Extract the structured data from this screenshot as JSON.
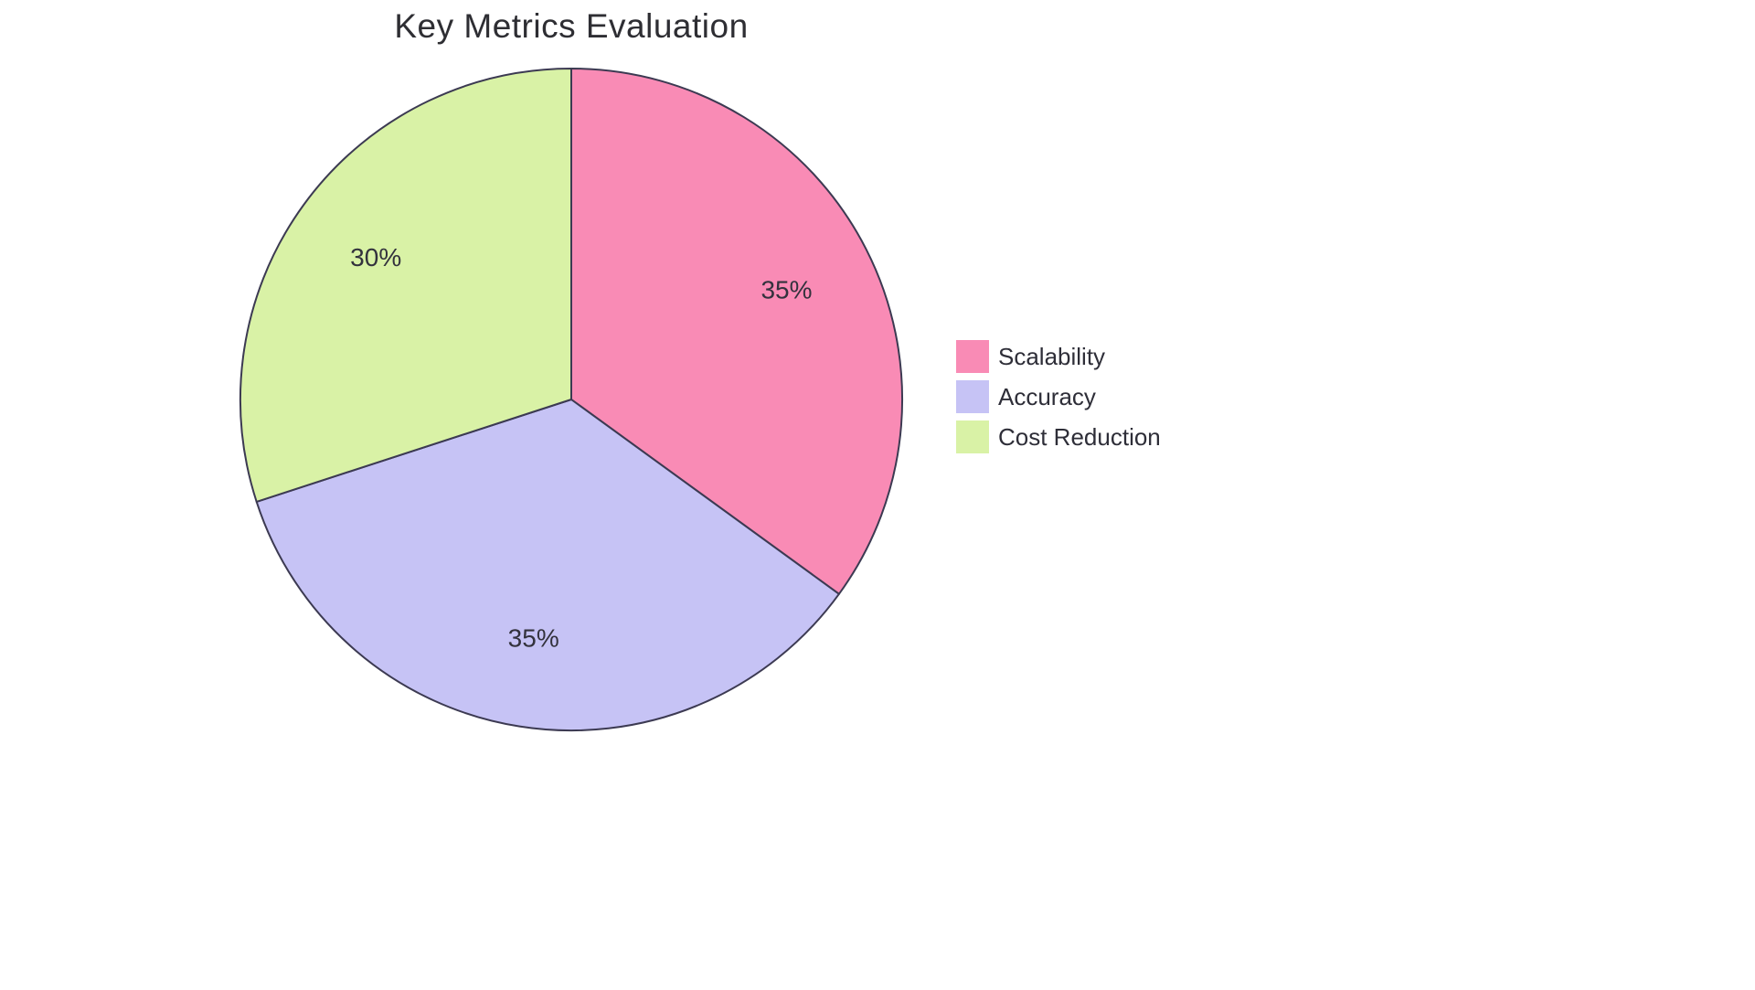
{
  "chart_data": {
    "type": "pie",
    "title": "Key Metrics Evaluation",
    "categories": [
      "Scalability",
      "Accuracy",
      "Cost Reduction"
    ],
    "values": [
      35,
      35,
      30
    ],
    "slice_labels": [
      "35%",
      "35%",
      "30%"
    ],
    "colors": [
      "#F98BB5",
      "#C6C3F5",
      "#D9F2A6"
    ],
    "stroke_color": "#3C3A52",
    "label_color": "#33323D",
    "title_color": "#2E2E33",
    "background_color": "#FFFFFF",
    "start_angle": "top",
    "direction": "clockwise",
    "legend_position": "right"
  }
}
